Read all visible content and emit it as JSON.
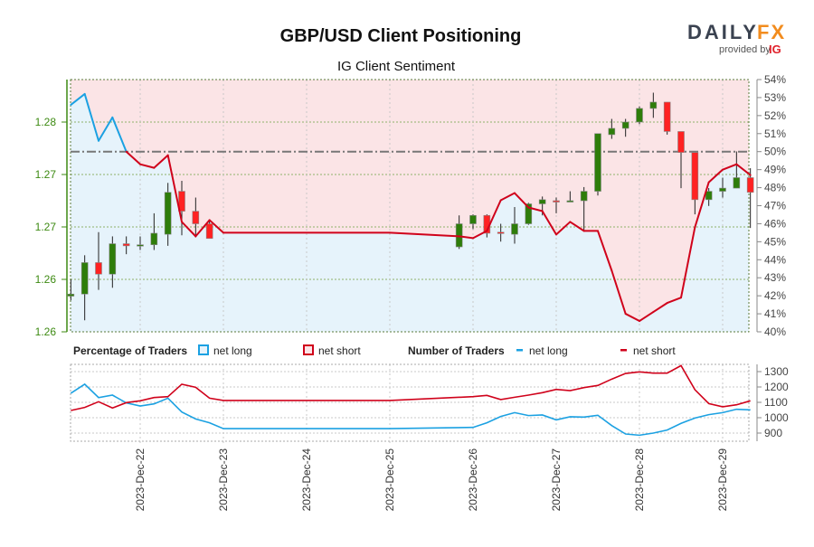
{
  "header": {
    "title": "GBP/USD Client Positioning",
    "subtitle": "IG Client Sentiment"
  },
  "logo": {
    "brand_left": "DAILY",
    "brand_right": "FX",
    "provided_by": "provided by",
    "ig": "IG"
  },
  "legend": {
    "percentage_title": "Percentage of Traders",
    "pct_long": "net long",
    "pct_short": "net short",
    "number_title": "Number of Traders",
    "num_long": "net long",
    "num_short": "net short"
  },
  "colors": {
    "long": "#1ba1e2",
    "short": "#d0021b",
    "long_fill": "#e6f3fb",
    "short_fill": "#fbe4e6",
    "bull": "#2e7d0a",
    "bear": "#ff2222",
    "price_axis": "#3d8a12"
  },
  "chart_data": [
    {
      "type": "candlestick",
      "title": "GBP/USD Client Positioning",
      "price_axis": {
        "side": "left",
        "ticks": [
          "1.26",
          "1.26",
          "1.27",
          "1.27",
          "1.28"
        ],
        "tick_values": [
          1.255,
          1.26,
          1.265,
          1.27,
          1.275
        ],
        "range": [
          1.255,
          1.279
        ]
      },
      "pct_axis": {
        "side": "right",
        "ticks": [
          "40%",
          "41%",
          "42%",
          "43%",
          "44%",
          "45%",
          "46%",
          "47%",
          "48%",
          "49%",
          "50%",
          "51%",
          "52%",
          "53%",
          "54%"
        ],
        "range": [
          40,
          54
        ]
      },
      "reference_line_pct": 50,
      "x_ticks": [
        "2023-Dec-22",
        "2023-Dec-23",
        "2023-Dec-24",
        "2023-Dec-25",
        "2023-Dec-26",
        "2023-Dec-27",
        "2023-Dec-28",
        "2023-Dec-29"
      ],
      "x_tick_dates": [
        "2023-12-22T00:00",
        "2023-12-23T00:00",
        "2023-12-24T00:00",
        "2023-12-25T00:00",
        "2023-12-26T00:00",
        "2023-12-27T00:00",
        "2023-12-28T00:00",
        "2023-12-29T00:00"
      ],
      "candles_fields": [
        "time",
        "open",
        "high",
        "low",
        "close"
      ],
      "candles": [
        [
          "2023-12-21T04:00",
          1.2584,
          1.26,
          1.258,
          1.2586
        ],
        [
          "2023-12-21T08:00",
          1.2586,
          1.2623,
          1.2561,
          1.2616
        ],
        [
          "2023-12-21T12:00",
          1.2616,
          1.2645,
          1.259,
          1.2605
        ],
        [
          "2023-12-21T16:00",
          1.2605,
          1.2641,
          1.2592,
          1.2634
        ],
        [
          "2023-12-21T20:00",
          1.2634,
          1.2641,
          1.2624,
          1.2632
        ],
        [
          "2023-12-22T00:00",
          1.2633,
          1.2641,
          1.2628,
          1.2633
        ],
        [
          "2023-12-22T04:00",
          1.2633,
          1.2663,
          1.2628,
          1.2644
        ],
        [
          "2023-12-22T08:00",
          1.2643,
          1.2692,
          1.2632,
          1.2683
        ],
        [
          "2023-12-22T12:00",
          1.2684,
          1.2694,
          1.2642,
          1.2665
        ],
        [
          "2023-12-22T16:00",
          1.2665,
          1.2678,
          1.264,
          1.2653
        ],
        [
          "2023-12-22T20:00",
          1.2653,
          1.2657,
          1.2639,
          1.2639
        ],
        [
          "2023-12-25T20:00",
          1.2631,
          1.2661,
          1.2629,
          1.2653
        ],
        [
          "2023-12-26T00:00",
          1.2653,
          1.2662,
          1.2648,
          1.2661
        ],
        [
          "2023-12-26T04:00",
          1.2661,
          1.2662,
          1.264,
          1.2644
        ],
        [
          "2023-12-26T08:00",
          1.2645,
          1.2653,
          1.2636,
          1.2644
        ],
        [
          "2023-12-26T12:00",
          1.2643,
          1.2669,
          1.2634,
          1.2653
        ],
        [
          "2023-12-26T16:00",
          1.2653,
          1.2673,
          1.2652,
          1.2672
        ],
        [
          "2023-12-26T20:00",
          1.2672,
          1.2679,
          1.2661,
          1.2676
        ],
        [
          "2023-12-27T00:00",
          1.2675,
          1.2678,
          1.2663,
          1.2674
        ],
        [
          "2023-12-27T04:00",
          1.2674,
          1.2684,
          1.2674,
          1.2675
        ],
        [
          "2023-12-27T08:00",
          1.2675,
          1.2688,
          1.2647,
          1.2684
        ],
        [
          "2023-12-27T12:00",
          1.2684,
          1.2739,
          1.268,
          1.2739
        ],
        [
          "2023-12-27T16:00",
          1.2738,
          1.2753,
          1.2734,
          1.2744
        ],
        [
          "2023-12-27T20:00",
          1.2744,
          1.2753,
          1.2736,
          1.275
        ],
        [
          "2023-12-28T00:00",
          1.275,
          1.2765,
          1.2748,
          1.2763
        ],
        [
          "2023-12-28T04:00",
          1.2763,
          1.2778,
          1.2754,
          1.2769
        ],
        [
          "2023-12-28T08:00",
          1.2769,
          1.2769,
          1.2738,
          1.2741
        ],
        [
          "2023-12-28T12:00",
          1.2741,
          1.2741,
          1.2687,
          1.2721
        ],
        [
          "2023-12-28T16:00",
          1.2721,
          1.2721,
          1.2662,
          1.2676
        ],
        [
          "2023-12-28T20:00",
          1.2676,
          1.2687,
          1.267,
          1.2684
        ],
        [
          "2023-12-29T00:00",
          1.2684,
          1.2697,
          1.2678,
          1.2687
        ],
        [
          "2023-12-29T04:00",
          1.2687,
          1.2722,
          1.2687,
          1.2697
        ],
        [
          "2023-12-29T08:00",
          1.2697,
          1.2706,
          1.2649,
          1.2683
        ]
      ],
      "net_long_pct": {
        "x": [
          "2023-12-21T04:00",
          "2023-12-21T08:00",
          "2023-12-21T12:00",
          "2023-12-21T16:00",
          "2023-12-21T20:00",
          "2023-12-22T00:00",
          "2023-12-22T04:00",
          "2023-12-22T08:00",
          "2023-12-22T12:00",
          "2023-12-22T16:00",
          "2023-12-22T20:00",
          "2023-12-23T00:00",
          "2023-12-25T00:00",
          "2023-12-25T20:00",
          "2023-12-26T00:00",
          "2023-12-26T04:00",
          "2023-12-26T08:00",
          "2023-12-26T12:00",
          "2023-12-26T16:00",
          "2023-12-26T20:00",
          "2023-12-27T00:00",
          "2023-12-27T04:00",
          "2023-12-27T08:00",
          "2023-12-27T12:00",
          "2023-12-27T16:00",
          "2023-12-27T20:00",
          "2023-12-28T00:00",
          "2023-12-28T04:00",
          "2023-12-28T08:00",
          "2023-12-28T12:00",
          "2023-12-28T16:00",
          "2023-12-28T20:00",
          "2023-12-29T00:00",
          "2023-12-29T04:00",
          "2023-12-29T08:00"
        ],
        "values": [
          52.6,
          53.2,
          50.6,
          51.9,
          50.0,
          49.3,
          49.1,
          49.8,
          46.1,
          45.3,
          46.2,
          45.5,
          45.5,
          45.3,
          45.2,
          45.6,
          47.3,
          47.7,
          46.9,
          46.7,
          45.4,
          46.1,
          45.6,
          45.6,
          43.4,
          41.0,
          40.6,
          41.1,
          41.6,
          41.9,
          45.8,
          48.3,
          49.0,
          49.3,
          48.7
        ]
      }
    },
    {
      "type": "line",
      "title": "Number of Traders",
      "y_axis": {
        "side": "right",
        "ticks": [
          "900",
          "1000",
          "1100",
          "1200",
          "1300"
        ],
        "range": [
          850,
          1350
        ]
      },
      "x": [
        "2023-12-21T04:00",
        "2023-12-21T08:00",
        "2023-12-21T12:00",
        "2023-12-21T16:00",
        "2023-12-21T20:00",
        "2023-12-22T00:00",
        "2023-12-22T04:00",
        "2023-12-22T08:00",
        "2023-12-22T12:00",
        "2023-12-22T16:00",
        "2023-12-22T20:00",
        "2023-12-23T00:00",
        "2023-12-25T00:00",
        "2023-12-26T00:00",
        "2023-12-26T04:00",
        "2023-12-26T08:00",
        "2023-12-26T12:00",
        "2023-12-26T16:00",
        "2023-12-26T20:00",
        "2023-12-27T00:00",
        "2023-12-27T04:00",
        "2023-12-27T08:00",
        "2023-12-27T12:00",
        "2023-12-27T16:00",
        "2023-12-27T20:00",
        "2023-12-28T00:00",
        "2023-12-28T04:00",
        "2023-12-28T08:00",
        "2023-12-28T12:00",
        "2023-12-28T16:00",
        "2023-12-28T20:00",
        "2023-12-29T00:00",
        "2023-12-29T04:00",
        "2023-12-29T08:00"
      ],
      "series": [
        {
          "name": "net long",
          "values": [
            1159,
            1218,
            1131,
            1147,
            1096,
            1076,
            1090,
            1127,
            1037,
            992,
            967,
            929,
            929,
            937,
            967,
            1008,
            1033,
            1014,
            1018,
            986,
            1006,
            1004,
            1016,
            949,
            894,
            886,
            900,
            920,
            963,
            998,
            1020,
            1033,
            1055,
            1051
          ]
        },
        {
          "name": "net short",
          "values": [
            1047,
            1067,
            1104,
            1063,
            1098,
            1110,
            1131,
            1137,
            1218,
            1198,
            1127,
            1112,
            1112,
            1137,
            1145,
            1118,
            1133,
            1147,
            1163,
            1184,
            1176,
            1196,
            1210,
            1251,
            1288,
            1298,
            1290,
            1290,
            1339,
            1182,
            1092,
            1071,
            1084,
            1110
          ]
        }
      ]
    }
  ]
}
